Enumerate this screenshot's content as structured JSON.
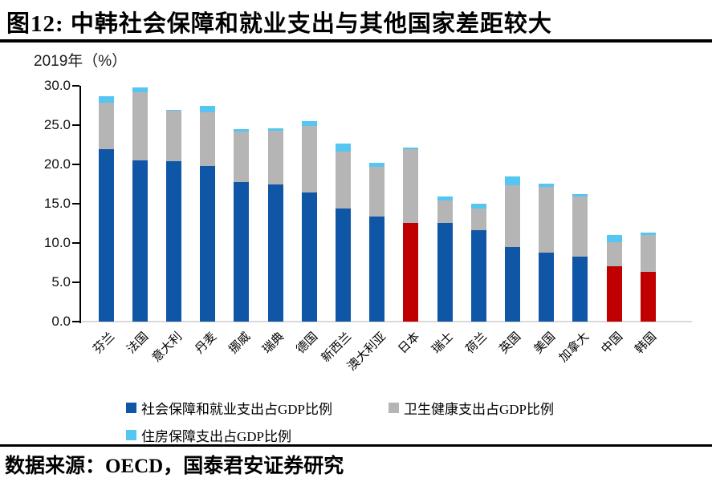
{
  "title": "图12:  中韩社会保障和就业支出与其他国家差距较大",
  "source": "数据来源：OECD，国泰君安证券研究",
  "colors": {
    "series_social": "#0F57A6",
    "series_health": "#B5B5B5",
    "series_housing": "#55C5F2",
    "highlight_red": "#C00000",
    "axis_black": "#000000",
    "baseline_gray": "#D9D9D9"
  },
  "chart_data": {
    "type": "bar",
    "stacked": true,
    "unit_label": "2019年（%）",
    "title": "中韩社会保障和就业支出与其他国家差距较大",
    "xlabel": "",
    "ylabel": "2019年（%）",
    "ylim": [
      0,
      30
    ],
    "yticks": [
      0,
      5,
      10,
      15,
      20,
      25,
      30
    ],
    "ytick_labels": [
      "0.0",
      "5.0",
      "10.0",
      "15.0",
      "20.0",
      "25.0",
      "30.0"
    ],
    "grid": false,
    "legend_position": "bottom",
    "categories": [
      "芬兰",
      "法国",
      "意大利",
      "丹麦",
      "挪威",
      "瑞典",
      "德国",
      "新西兰",
      "澳大利亚",
      "日本",
      "瑞士",
      "荷兰",
      "英国",
      "美国",
      "加拿大",
      "中国",
      "韩国"
    ],
    "series": [
      {
        "name": "社会保障和就业支出占GDP比例",
        "color": "#0F57A6",
        "values": [
          21.9,
          20.5,
          20.4,
          19.8,
          17.8,
          17.4,
          16.4,
          14.4,
          13.4,
          12.6,
          12.6,
          11.6,
          9.5,
          8.8,
          8.3,
          7.0,
          6.3
        ]
      },
      {
        "name": "卫生健康支出占GDP比例",
        "color": "#B5B5B5",
        "values": [
          6.0,
          8.7,
          6.4,
          6.8,
          6.4,
          6.9,
          8.5,
          7.2,
          6.3,
          9.3,
          2.8,
          2.8,
          7.8,
          8.3,
          7.6,
          3.1,
          4.7
        ]
      },
      {
        "name": "住房保障支出占GDP比例",
        "color": "#55C5F2",
        "values": [
          0.8,
          0.6,
          0.1,
          0.8,
          0.3,
          0.3,
          0.6,
          1.1,
          0.5,
          0.2,
          0.5,
          0.6,
          1.2,
          0.5,
          0.3,
          0.9,
          0.3
        ]
      }
    ],
    "highlight": {
      "series_index": 0,
      "category_indices": [
        9,
        15,
        16
      ],
      "color": "#C00000",
      "note": "日本、中国、韩国的社会保障和就业支出为红色"
    }
  }
}
